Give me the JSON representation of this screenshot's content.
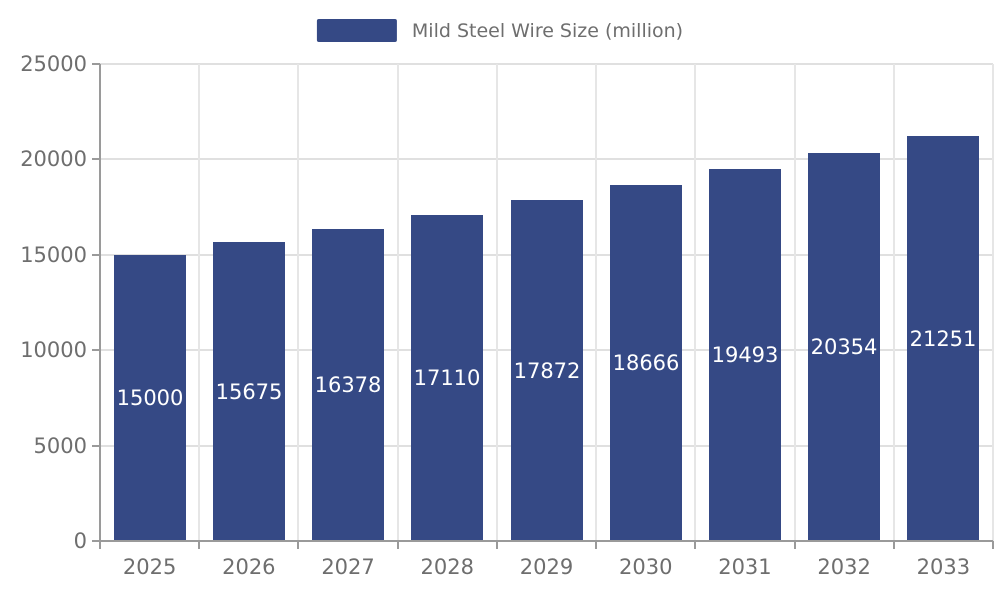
{
  "legend": {
    "label": "Mild Steel Wire Size (million)"
  },
  "colors": {
    "bar": "#354985",
    "axis_line": "#9a9a9a",
    "grid_h": "#e0e0e0",
    "grid_v": "#e6e6e6",
    "tick_label": "#6e6e6e",
    "legend_text": "#6e6e6e",
    "value_label": "#ffffff",
    "background": "#ffffff"
  },
  "chart_data": {
    "type": "bar",
    "title": "Mild Steel Wire Size (million)",
    "series_name": "Mild Steel Wire Size (million)",
    "categories": [
      "2025",
      "2026",
      "2027",
      "2028",
      "2029",
      "2030",
      "2031",
      "2032",
      "2033"
    ],
    "values": [
      15000,
      15675,
      16378,
      17110,
      17872,
      18666,
      19493,
      20354,
      21251
    ],
    "xlabel": "",
    "ylabel": "",
    "ylim": [
      0,
      25000
    ],
    "yticks": [
      0,
      5000,
      10000,
      15000,
      20000,
      25000
    ],
    "grid": true,
    "legend_position": "top-center",
    "value_labels": "inside-center",
    "bar_width_fraction": 0.73
  }
}
